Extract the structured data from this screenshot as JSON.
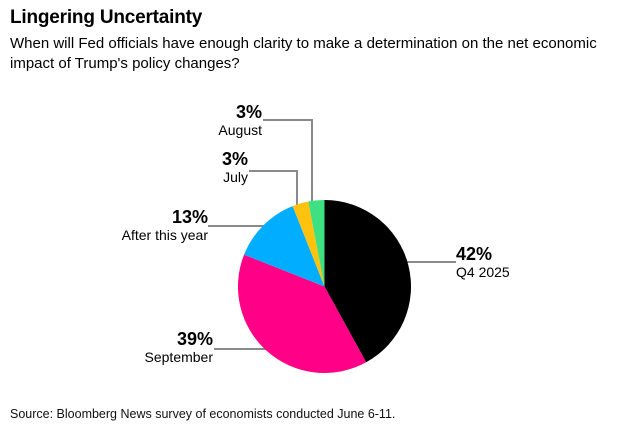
{
  "chart_data": {
    "type": "pie",
    "title": "Lingering Uncertainty",
    "subtitle": "When will Fed officials have enough clarity to make a determination on the net economic impact of Trump's policy changes?",
    "source": "Source: Bloomberg News survey of economists conducted June 6-11.",
    "start_angle_deg": 0,
    "direction": "clockwise",
    "legend_position": "none",
    "labels_style": "external-leader-lines",
    "leader_line_color": "#8a8a8a",
    "slices": [
      {
        "label": "Q4 2025",
        "value": 42,
        "pct_label": "42%",
        "color": "#000000"
      },
      {
        "label": "September",
        "value": 39,
        "pct_label": "39%",
        "color": "#FF0087"
      },
      {
        "label": "After this year",
        "value": 13,
        "pct_label": "13%",
        "color": "#00ADFF"
      },
      {
        "label": "July",
        "value": 3,
        "pct_label": "3%",
        "color": "#FFC20E"
      },
      {
        "label": "August",
        "value": 3,
        "pct_label": "3%",
        "color": "#3FE081"
      }
    ]
  }
}
